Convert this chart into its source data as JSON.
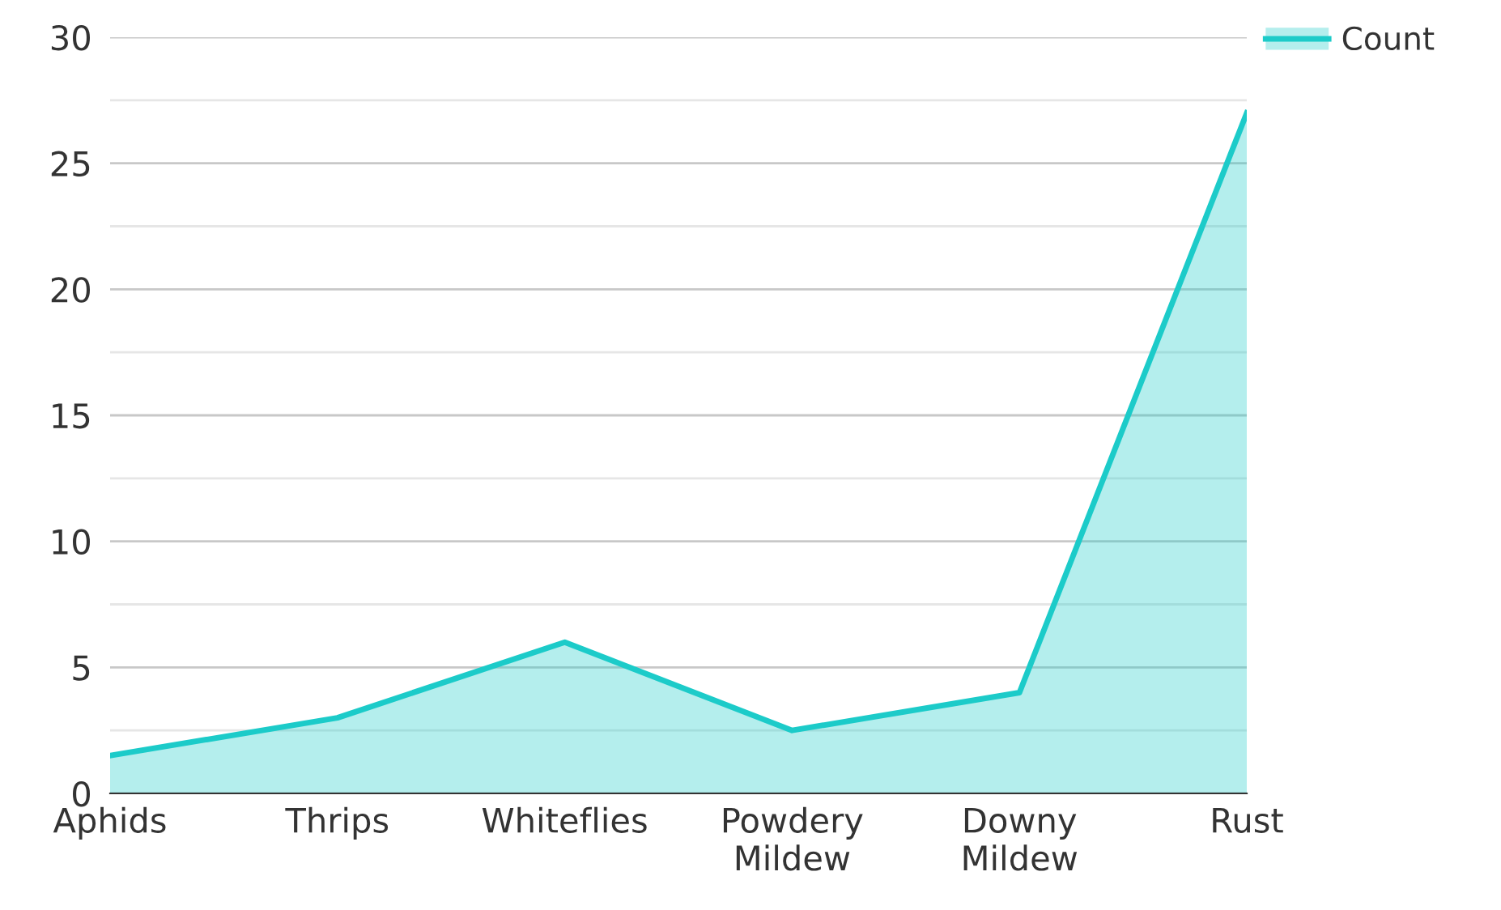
{
  "chart_data": {
    "type": "area",
    "categories": [
      "Aphids",
      "Thrips",
      "Whiteflies",
      "Powdery\nMildew",
      "Downy\nMildew",
      "Rust"
    ],
    "series": [
      {
        "name": "Count",
        "color": "#1ccbc9",
        "values": [
          1.5,
          3,
          6,
          2.5,
          4,
          27
        ]
      }
    ],
    "ylim": [
      0,
      30
    ],
    "yticks": [
      0,
      {
        "value": 2.5,
        "label": null
      },
      5,
      {
        "value": 7.5,
        "label": null
      },
      10,
      {
        "value": 12.5,
        "label": null
      },
      15,
      {
        "value": 17.5,
        "label": null
      },
      20,
      {
        "value": 22.5,
        "label": null
      },
      25,
      {
        "value": 27.5,
        "label": null
      },
      30
    ],
    "grid": "y",
    "legend": "top right"
  }
}
